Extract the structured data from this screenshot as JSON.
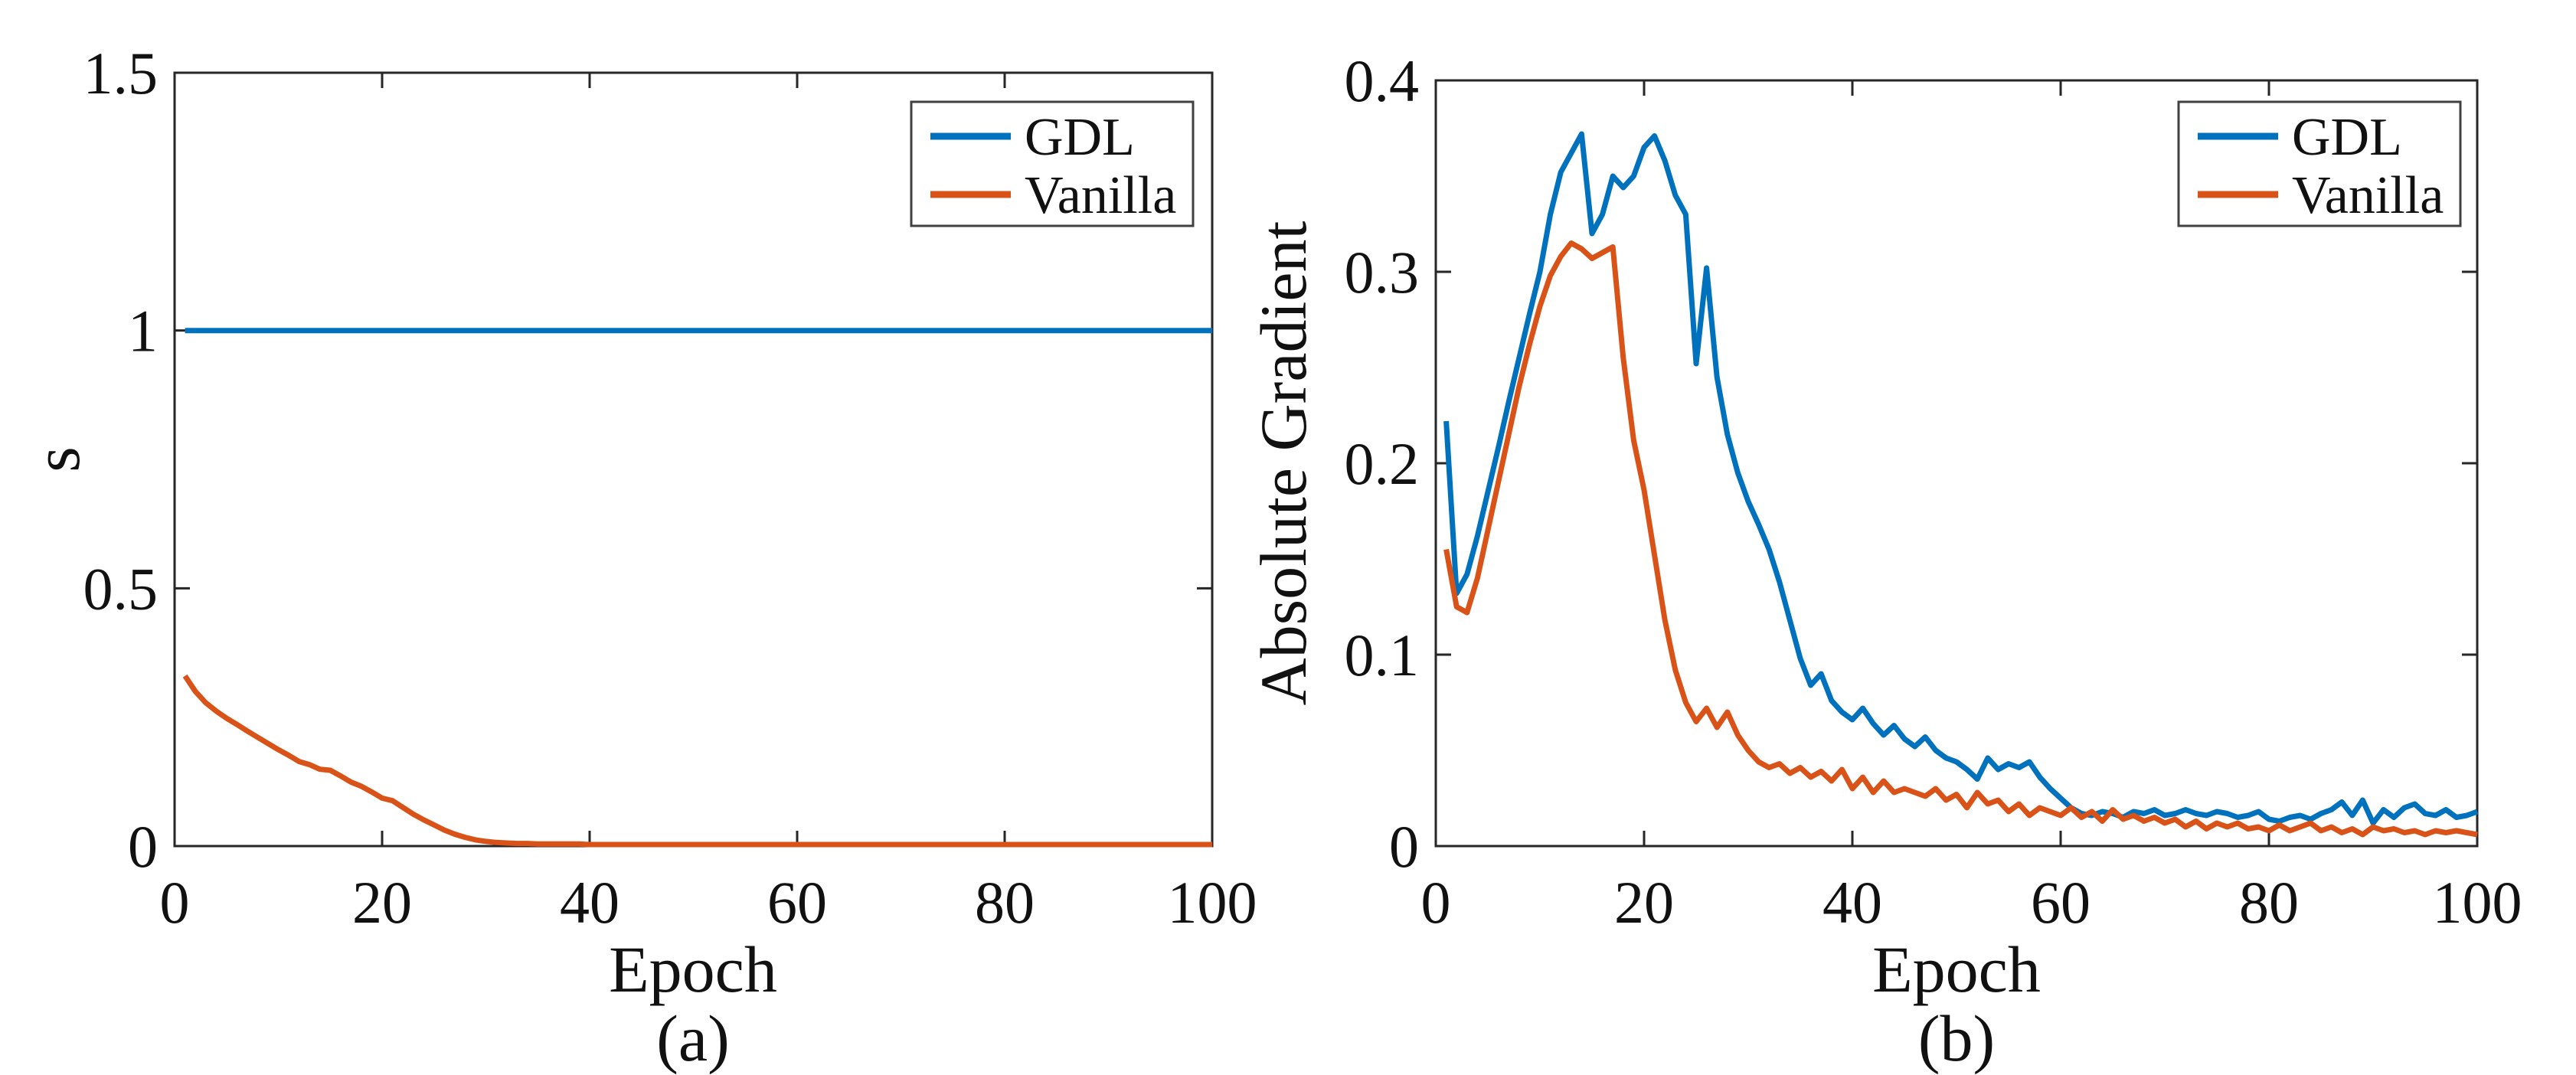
{
  "figure": {
    "background": "#ffffff",
    "text_color": "#111111",
    "axis_color": "#262626",
    "gdl_color": "#0072BD",
    "vanilla_color": "#D95319"
  },
  "chart_data": [
    {
      "id": "a",
      "type": "line",
      "title": "",
      "xlabel": "Epoch",
      "ylabel": "s",
      "caption": "(a)",
      "xlim": [
        0,
        100
      ],
      "ylim": [
        0,
        1.5
      ],
      "grid": false,
      "xtick_labels": [
        "0",
        "20",
        "40",
        "60",
        "80",
        "100"
      ],
      "xtick_values": [
        0,
        20,
        40,
        60,
        80,
        100
      ],
      "ytick_labels": [
        "0",
        "0.5",
        "1",
        "1.5"
      ],
      "ytick_values": [
        0,
        0.5,
        1,
        1.5
      ],
      "legend": {
        "position": "northeast",
        "entries": [
          "GDL",
          "Vanilla"
        ]
      },
      "series": [
        {
          "name": "GDL",
          "color": "#0072BD",
          "x": [
            1,
            100
          ],
          "y": [
            1.0,
            1.0
          ]
        },
        {
          "name": "Vanilla",
          "color": "#D95319",
          "x_start": 1,
          "x_step": 1,
          "y": [
            0.33,
            0.3,
            0.278,
            0.262,
            0.248,
            0.236,
            0.223,
            0.211,
            0.199,
            0.187,
            0.176,
            0.164,
            0.158,
            0.149,
            0.147,
            0.136,
            0.124,
            0.116,
            0.105,
            0.093,
            0.088,
            0.075,
            0.062,
            0.051,
            0.041,
            0.031,
            0.023,
            0.017,
            0.012,
            0.009,
            0.007,
            0.006,
            0.005,
            0.005,
            0.004,
            0.004,
            0.004,
            0.004,
            0.004,
            0.003,
            0.003,
            0.003,
            0.003,
            0.003,
            0.003,
            0.003,
            0.003,
            0.003,
            0.003,
            0.003,
            0.003,
            0.003,
            0.003,
            0.003,
            0.003,
            0.003,
            0.003,
            0.003,
            0.003,
            0.003,
            0.003,
            0.003,
            0.003,
            0.003,
            0.003,
            0.003,
            0.003,
            0.003,
            0.003,
            0.003,
            0.003,
            0.003,
            0.003,
            0.003,
            0.003,
            0.003,
            0.003,
            0.003,
            0.003,
            0.003,
            0.003,
            0.003,
            0.003,
            0.003,
            0.003,
            0.003,
            0.003,
            0.003,
            0.003,
            0.003,
            0.003,
            0.003,
            0.003,
            0.003,
            0.003,
            0.003,
            0.003,
            0.003,
            0.003,
            0.003
          ]
        }
      ]
    },
    {
      "id": "b",
      "type": "line",
      "title": "",
      "xlabel": "Epoch",
      "ylabel": "Absolute Gradient",
      "caption": "(b)",
      "xlim": [
        0,
        100
      ],
      "ylim": [
        0,
        0.4
      ],
      "grid": false,
      "xtick_labels": [
        "0",
        "20",
        "40",
        "60",
        "80",
        "100"
      ],
      "xtick_values": [
        0,
        20,
        40,
        60,
        80,
        100
      ],
      "ytick_labels": [
        "0",
        "0.1",
        "0.2",
        "0.3",
        "0.4"
      ],
      "ytick_values": [
        0,
        0.1,
        0.2,
        0.3,
        0.4
      ],
      "legend": {
        "position": "northeast",
        "entries": [
          "GDL",
          "Vanilla"
        ]
      },
      "series": [
        {
          "name": "GDL",
          "color": "#0072BD",
          "x_start": 1,
          "x_step": 1,
          "y": [
            0.222,
            0.132,
            0.142,
            0.162,
            0.185,
            0.208,
            0.232,
            0.255,
            0.278,
            0.3,
            0.33,
            0.352,
            0.362,
            0.372,
            0.32,
            0.33,
            0.35,
            0.344,
            0.35,
            0.365,
            0.371,
            0.358,
            0.34,
            0.33,
            0.252,
            0.302,
            0.245,
            0.215,
            0.195,
            0.18,
            0.168,
            0.155,
            0.138,
            0.118,
            0.098,
            0.084,
            0.09,
            0.076,
            0.07,
            0.066,
            0.072,
            0.064,
            0.058,
            0.063,
            0.056,
            0.052,
            0.057,
            0.05,
            0.046,
            0.044,
            0.04,
            0.035,
            0.046,
            0.04,
            0.043,
            0.041,
            0.044,
            0.036,
            0.03,
            0.025,
            0.02,
            0.017,
            0.016,
            0.018,
            0.017,
            0.015,
            0.018,
            0.017,
            0.019,
            0.016,
            0.017,
            0.019,
            0.017,
            0.016,
            0.018,
            0.017,
            0.015,
            0.016,
            0.018,
            0.014,
            0.013,
            0.015,
            0.016,
            0.014,
            0.017,
            0.019,
            0.023,
            0.016,
            0.024,
            0.012,
            0.019,
            0.015,
            0.02,
            0.022,
            0.017,
            0.016,
            0.019,
            0.015,
            0.016,
            0.018
          ]
        },
        {
          "name": "Vanilla",
          "color": "#D95319",
          "x_start": 1,
          "x_step": 1,
          "y": [
            0.155,
            0.125,
            0.122,
            0.14,
            0.165,
            0.19,
            0.215,
            0.24,
            0.262,
            0.282,
            0.298,
            0.308,
            0.315,
            0.312,
            0.307,
            0.31,
            0.313,
            0.255,
            0.212,
            0.186,
            0.152,
            0.118,
            0.092,
            0.075,
            0.065,
            0.072,
            0.062,
            0.07,
            0.058,
            0.05,
            0.044,
            0.041,
            0.043,
            0.038,
            0.041,
            0.036,
            0.039,
            0.034,
            0.04,
            0.03,
            0.036,
            0.028,
            0.034,
            0.028,
            0.03,
            0.028,
            0.026,
            0.03,
            0.024,
            0.027,
            0.02,
            0.028,
            0.022,
            0.024,
            0.018,
            0.022,
            0.016,
            0.02,
            0.018,
            0.016,
            0.02,
            0.015,
            0.018,
            0.013,
            0.019,
            0.014,
            0.016,
            0.013,
            0.015,
            0.012,
            0.014,
            0.01,
            0.013,
            0.009,
            0.012,
            0.01,
            0.012,
            0.009,
            0.01,
            0.008,
            0.011,
            0.008,
            0.01,
            0.012,
            0.008,
            0.01,
            0.007,
            0.009,
            0.006,
            0.01,
            0.008,
            0.009,
            0.007,
            0.008,
            0.006,
            0.008,
            0.007,
            0.008,
            0.007,
            0.006
          ]
        }
      ]
    }
  ]
}
